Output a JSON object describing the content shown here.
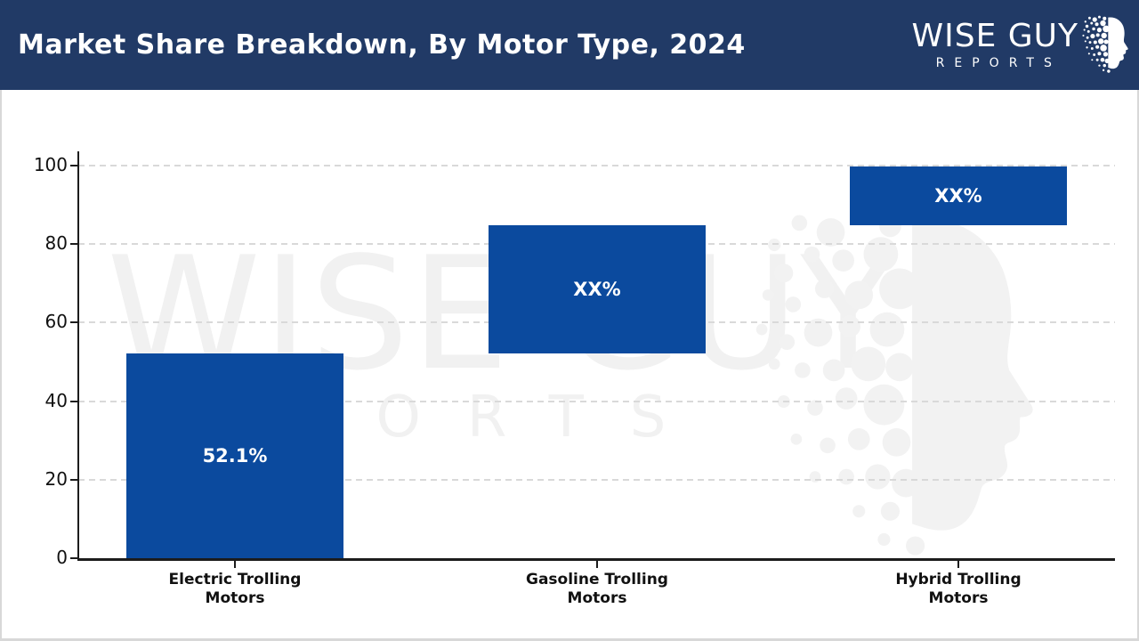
{
  "header": {
    "title": "Market Share Breakdown, By Motor Type, 2024",
    "logo": {
      "wordmark": "WISE GUY",
      "subtext": "REPORTS"
    }
  },
  "watermark": {
    "wordmark": "WISE GUY",
    "subtext": "REPORTS"
  },
  "colors": {
    "header_bg": "#213a66",
    "bar": "#0b4a9e",
    "gridline": "#d9d9d9",
    "axis": "#1c1c1c",
    "watermark": "#f1f1f1"
  },
  "chart_data": {
    "type": "bar",
    "variant": "floating-waterfall",
    "title": "Market Share Breakdown, By Motor Type, 2024",
    "categories": [
      "Electric Trolling Motors",
      "Gasoline Trolling Motors",
      "Hybrid Trolling Motors"
    ],
    "category_lines": [
      [
        "Electric Trolling",
        "Motors"
      ],
      [
        "Gasoline Trolling",
        "Motors"
      ],
      [
        "Hybrid Trolling",
        "Motors"
      ]
    ],
    "series": [
      {
        "name": "Market share (%)",
        "segments": [
          {
            "category": "Electric Trolling Motors",
            "start": 0,
            "end": 52.1,
            "label": "52.1%"
          },
          {
            "category": "Gasoline Trolling Motors",
            "start": 52.1,
            "end": 84.9,
            "label": "XX%"
          },
          {
            "category": "Hybrid Trolling Motors",
            "start": 84.9,
            "end": 99.7,
            "label": "XX%"
          }
        ]
      }
    ],
    "yticks": [
      0,
      20,
      40,
      60,
      80,
      100
    ],
    "ylim": [
      0,
      103.6
    ],
    "grid": "horizontal-dashed",
    "legend": "none",
    "xlabel": "",
    "ylabel": "",
    "bar_color": "#0b4a9e",
    "bar_label_color": "#ffffff"
  }
}
